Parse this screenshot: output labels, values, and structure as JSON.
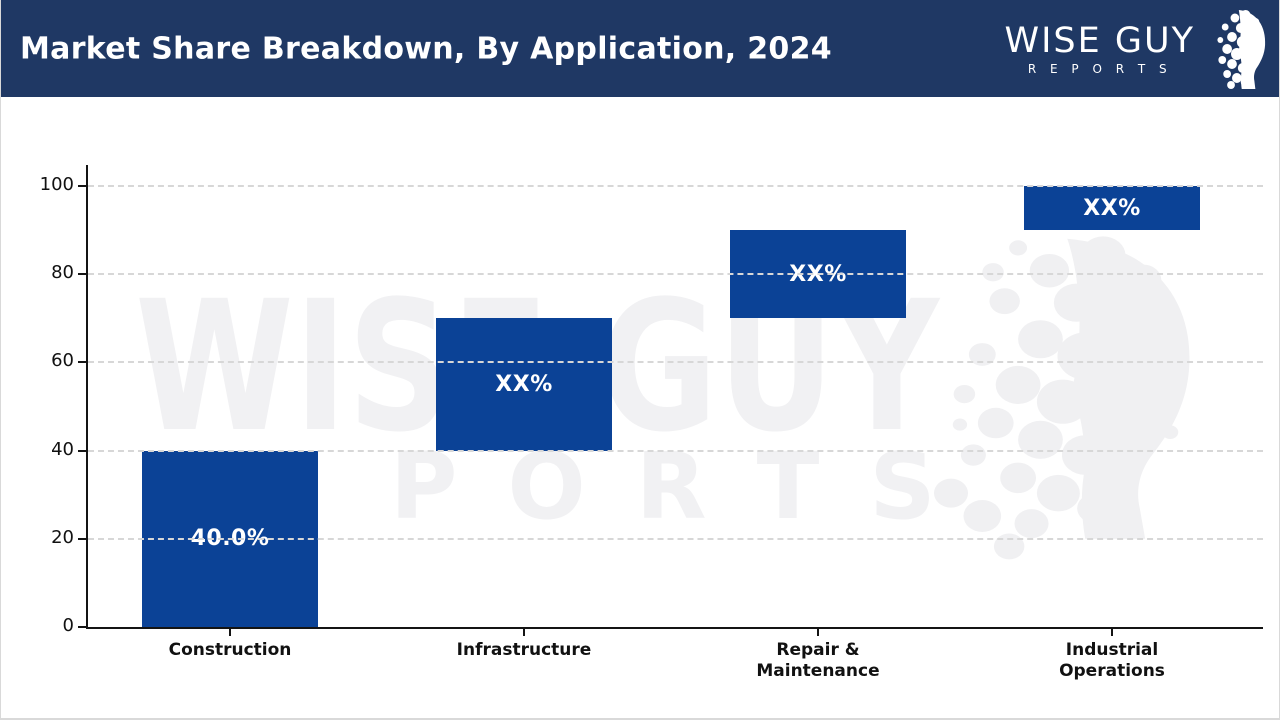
{
  "header": {
    "title": "Market Share Breakdown, By Application, 2024",
    "logo": {
      "name_line": "WISE GUY",
      "sub_line": "R E P O R T S"
    }
  },
  "watermark": {
    "line1": "WISE GUY",
    "line2": "P O R T S"
  },
  "chart_data": {
    "type": "bar",
    "subtype": "waterfall",
    "title": "Market Share Breakdown, By Application, 2024",
    "categories": [
      "Construction",
      "Infrastructure",
      "Repair & Maintenance",
      "Industrial Operations"
    ],
    "category_lines": [
      [
        "Construction"
      ],
      [
        "Infrastructure"
      ],
      [
        "Repair &",
        "Maintenance"
      ],
      [
        "Industrial",
        "Operations"
      ]
    ],
    "segments": [
      {
        "category": "Construction",
        "start": 0,
        "end": 40,
        "label": "40.0%"
      },
      {
        "category": "Infrastructure",
        "start": 40,
        "end": 70,
        "label": "XX%"
      },
      {
        "category": "Repair & Maintenance",
        "start": 70,
        "end": 90,
        "label": "XX%"
      },
      {
        "category": "Industrial Operations",
        "start": 90,
        "end": 100,
        "label": "XX%"
      }
    ],
    "ylim": [
      0,
      100
    ],
    "yticks": [
      0,
      20,
      40,
      60,
      80,
      100
    ],
    "xlabel": "",
    "ylabel": "",
    "legend": "none",
    "grid": "horizontal-dashed",
    "bar_color": "#0b4296",
    "bar_label_color": "#ffffff",
    "axis_color": "#141414",
    "grid_color": "#d7d7d7",
    "header_bg": "#1f3864",
    "watermark_color": "#f1f1f3"
  }
}
